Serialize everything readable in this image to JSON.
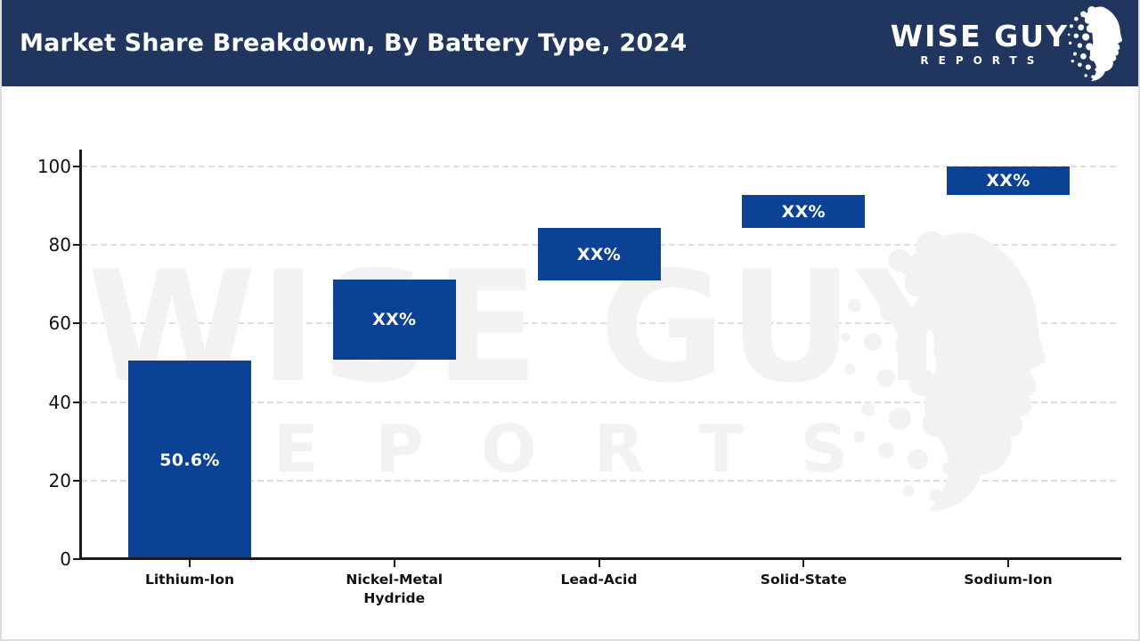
{
  "header": {
    "title": "Market Share Breakdown, By Battery Type, 2024",
    "bg_color": "#20365e"
  },
  "brand": {
    "name_top": "WISE GUY",
    "name_bottom": "REPORTS"
  },
  "watermark": {
    "line1": "WISE GUY",
    "line2": "REPORTS"
  },
  "chart_data": {
    "type": "bar",
    "subtype": "waterfall",
    "title": "Market Share Breakdown, By Battery Type, 2024",
    "xlabel": "",
    "ylabel": "",
    "ylim": [
      0,
      100
    ],
    "yticks": [
      0,
      20,
      40,
      60,
      80,
      100
    ],
    "grid": true,
    "bar_color": "#0b4296",
    "label_color": "#ffffff",
    "segments": [
      {
        "category": "Lithium-Ion",
        "label": "50.6%",
        "start": 0,
        "end": 50.6
      },
      {
        "category": "Nickel-Metal Hydride",
        "label": "XX%",
        "start": 50.6,
        "end": 71.1
      },
      {
        "category": "Lead-Acid",
        "label": "XX%",
        "start": 71.1,
        "end": 84.4
      },
      {
        "category": "Solid-State",
        "label": "XX%",
        "start": 84.4,
        "end": 92.8
      },
      {
        "category": "Sodium-Ion",
        "label": "XX%",
        "start": 92.8,
        "end": 100
      }
    ]
  }
}
